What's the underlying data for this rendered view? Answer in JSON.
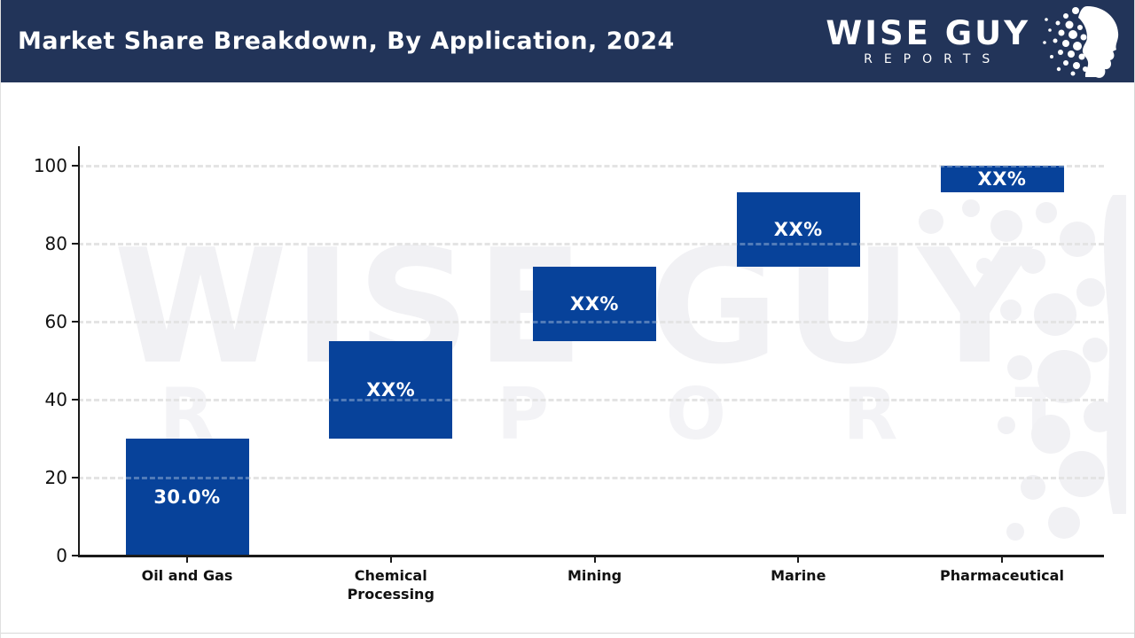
{
  "header": {
    "title": "Market Share Breakdown, By Application, 2024",
    "bg_color": "#223459",
    "logo": {
      "line1": "WISE GUY",
      "line2": "REPORTS"
    }
  },
  "watermark": {
    "line1": "WISE GUY",
    "line2": "REPORTS"
  },
  "chart_data": {
    "type": "bar",
    "subtype": "waterfall-floating-segments",
    "title": "Market Share Breakdown, By Application, 2024",
    "xlabel": "",
    "ylabel": "",
    "ylim": [
      0,
      105
    ],
    "y_ticks": [
      0,
      20,
      40,
      60,
      80,
      100
    ],
    "grid": "horizontal-dashed",
    "legend": "none",
    "bar_color": "#07429a",
    "label_color": "#ffffff",
    "categories": [
      "Oil and Gas",
      "Chemical Processing",
      "Mining",
      "Marine",
      "Pharmaceutical"
    ],
    "segments": [
      {
        "category": "Oil and Gas",
        "start": 0,
        "end": 30,
        "label": "30.0%"
      },
      {
        "category": "Chemical Processing",
        "start": 30,
        "end": 55,
        "label": "XX%"
      },
      {
        "category": "Mining",
        "start": 55,
        "end": 74,
        "label": "XX%"
      },
      {
        "category": "Marine",
        "start": 74,
        "end": 93,
        "label": "XX%"
      },
      {
        "category": "Pharmaceutical",
        "start": 93,
        "end": 100,
        "label": "XX%"
      }
    ]
  }
}
